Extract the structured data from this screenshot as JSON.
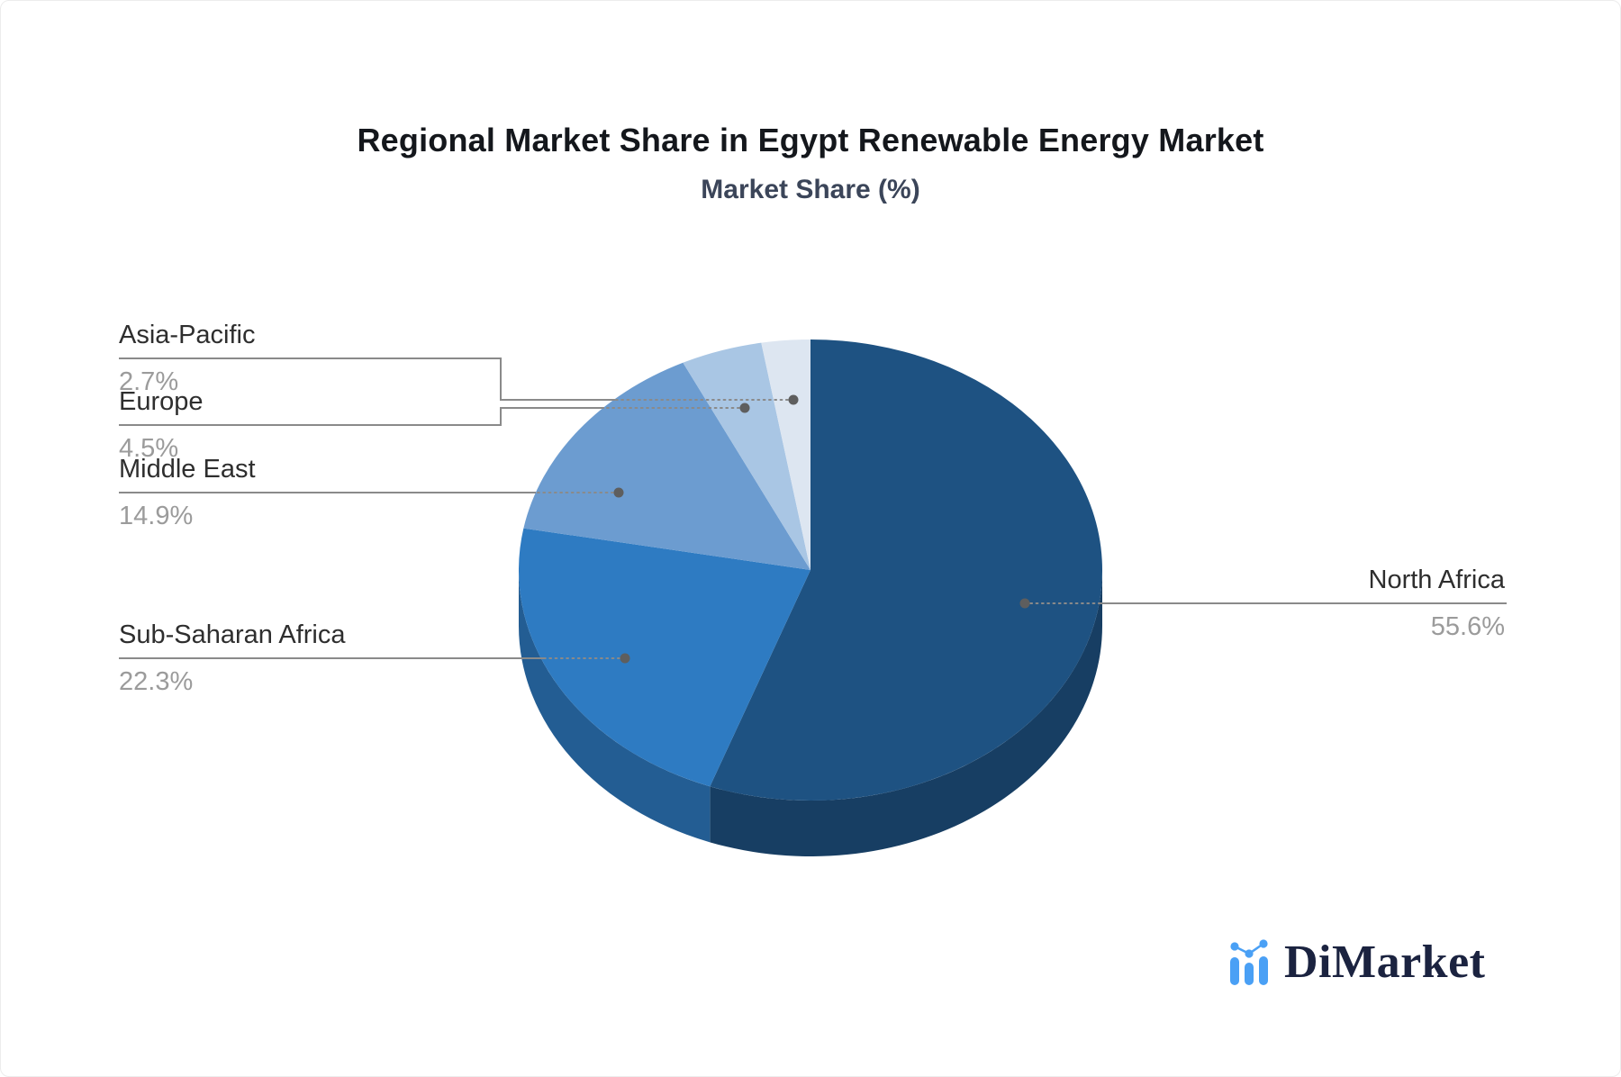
{
  "title": "Regional Market Share in Egypt Renewable Energy Market",
  "subtitle": "Market Share (%)",
  "logo": {
    "text": "DiMarket",
    "icon_color": "#4aa0f5",
    "text_color": "#1b2340"
  },
  "chart_data": {
    "type": "pie",
    "style": "3d",
    "title": "Regional Market Share in Egypt Renewable Energy Market",
    "subtitle": "Market Share (%)",
    "unit": "%",
    "start_angle_deg": 0,
    "direction": "clockwise",
    "slices": [
      {
        "name": "North Africa",
        "value": 55.6,
        "pct_label": "55.6%",
        "color": "#1E5282"
      },
      {
        "name": "Sub-Saharan Africa",
        "value": 22.3,
        "pct_label": "22.3%",
        "color": "#2E7BC2"
      },
      {
        "name": "Middle East",
        "value": 14.9,
        "pct_label": "14.9%",
        "color": "#6C9CD0"
      },
      {
        "name": "Europe",
        "value": 4.5,
        "pct_label": "4.5%",
        "color": "#A9C6E4"
      },
      {
        "name": "Asia-Pacific",
        "value": 2.7,
        "pct_label": "2.7%",
        "color": "#DDE6F1"
      }
    ],
    "legend": "none",
    "leader_line_color": "#8a8a8a",
    "label_color": "#2e2e2e",
    "pct_color": "#9b9b9b"
  }
}
